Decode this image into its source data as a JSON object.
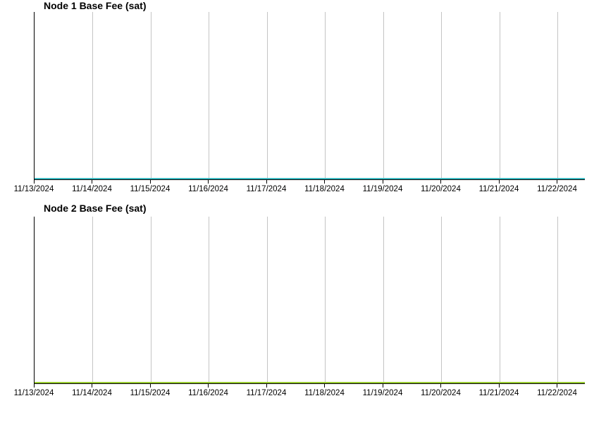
{
  "chart_data": [
    {
      "type": "line",
      "title": "Node 1 Base Fee (sat)",
      "x": [
        "11/13/2024",
        "11/14/2024",
        "11/15/2024",
        "11/16/2024",
        "11/17/2024",
        "11/18/2024",
        "11/19/2024",
        "11/20/2024",
        "11/21/2024",
        "11/22/2024"
      ],
      "series": [
        {
          "name": "Node 1 Base Fee (sat)",
          "values": [
            0,
            0,
            0,
            0,
            0,
            0,
            0,
            0,
            0,
            0
          ],
          "color": "#3dbac2"
        }
      ],
      "xlabel": "",
      "ylabel": "",
      "ylim": [
        0,
        null
      ],
      "grid": "vertical",
      "legend": "none",
      "axis_color": "#000000",
      "gridline_color": "#c4c4c4"
    },
    {
      "type": "line",
      "title": "Node 2 Base Fee (sat)",
      "x": [
        "11/13/2024",
        "11/14/2024",
        "11/15/2024",
        "11/16/2024",
        "11/17/2024",
        "11/18/2024",
        "11/19/2024",
        "11/20/2024",
        "11/21/2024",
        "11/22/2024"
      ],
      "series": [
        {
          "name": "Node 2 Base Fee (sat)",
          "values": [
            0,
            0,
            0,
            0,
            0,
            0,
            0,
            0,
            0,
            0
          ],
          "color": "#9acd32"
        }
      ],
      "xlabel": "",
      "ylabel": "",
      "ylim": [
        0,
        null
      ],
      "grid": "vertical",
      "legend": "none",
      "axis_color": "#000000",
      "gridline_color": "#c4c4c4"
    }
  ]
}
